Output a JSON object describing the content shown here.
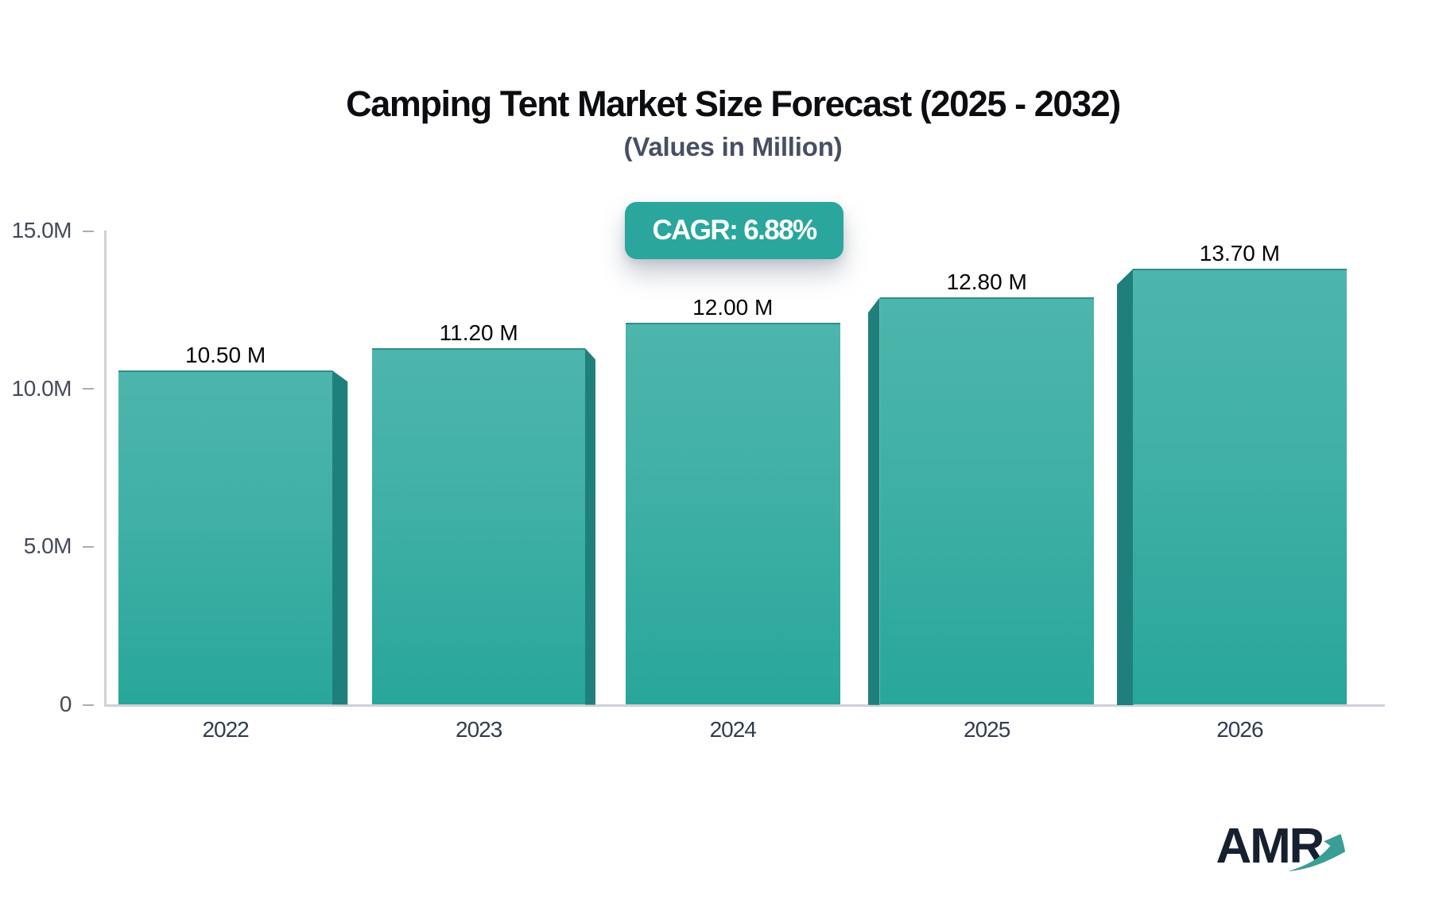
{
  "title": "Camping Tent Market Size Forecast (2025 - 2032)",
  "subtitle": "(Values in Million)",
  "cagr_badge": {
    "label": "CAGR: 6.88%",
    "background": "#2aa69d",
    "text_color": "#ffffff"
  },
  "chart_data": {
    "type": "bar",
    "title": "Camping Tent Market Size Forecast (2025 - 2032)",
    "subtitle": "(Values in Million)",
    "categories": [
      "2022",
      "2023",
      "2024",
      "2025",
      "2026"
    ],
    "values": [
      10.5,
      11.2,
      12.0,
      12.8,
      13.7
    ],
    "value_labels": [
      "10.50 M",
      "11.20 M",
      "12.00 M",
      "12.80 M",
      "13.70 M"
    ],
    "annotation": "CAGR: 6.88%",
    "y_ticks": [
      {
        "label": "15.0M",
        "value": 15
      },
      {
        "label": "10.0M",
        "value": 10
      },
      {
        "label": "5.0M",
        "value": 5
      },
      {
        "label": "0",
        "value": 0
      }
    ],
    "ylim": [
      0,
      15
    ],
    "xlabel": "",
    "ylabel": "",
    "grid": false,
    "legend": false,
    "bar_color_top": "#4db5ac",
    "bar_color_bottom": "#29a69a",
    "bar_side_color": "#1f807b",
    "axis_color": "#ced0da"
  },
  "logo": {
    "text": "AMR",
    "text_color": "#16202f",
    "arrow_color": "#3a9d96",
    "arrow_icon": "trend-up-arrow"
  }
}
